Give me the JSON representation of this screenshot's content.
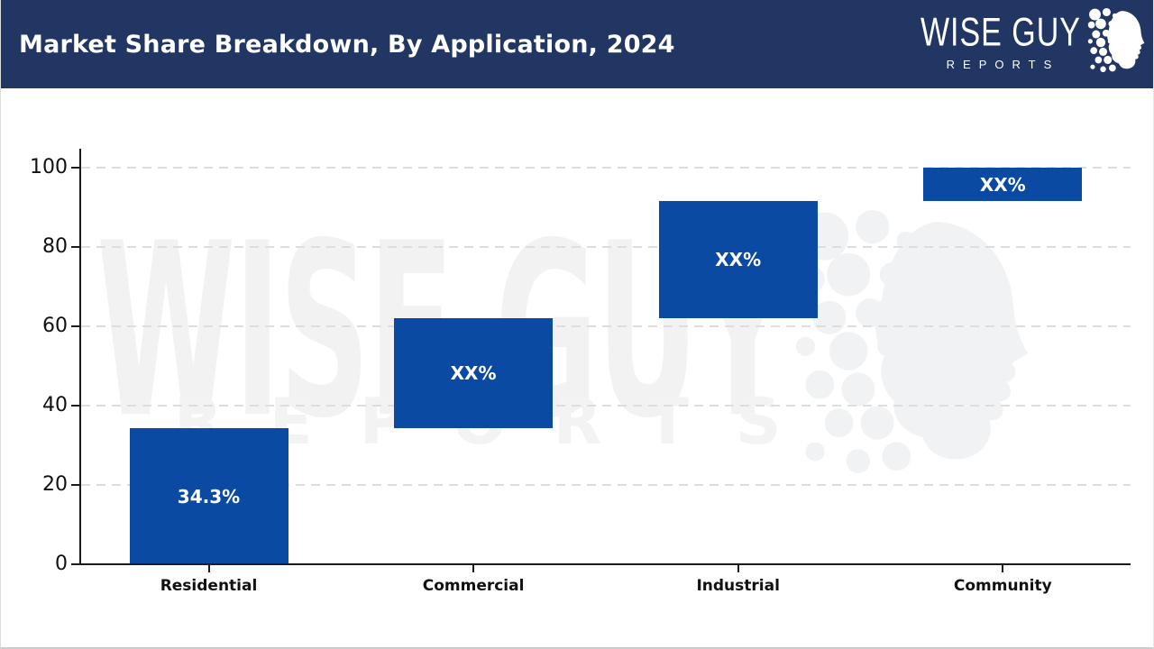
{
  "header": {
    "title": "Market Share Breakdown, By Application, 2024",
    "logo": {
      "line1": "WISE GUY",
      "line2": "REPORTS"
    }
  },
  "watermark": {
    "line1": "WISE GUY",
    "line2": "REPORTS"
  },
  "colors": {
    "header_bg": "#213662",
    "bar_blue": "#0B4AA2",
    "grid_gray": "#dedede",
    "axis_black": "#1a1a1a",
    "watermark_gray": "#f2f2f3"
  },
  "chart_data": {
    "type": "bar",
    "subtype": "waterfall",
    "title": "Market Share Breakdown, By Application, 2024",
    "categories": [
      "Residential",
      "Commercial",
      "Industrial",
      "Community"
    ],
    "segments": [
      {
        "category": "Residential",
        "start": 0,
        "end": 34.3,
        "label": "34.3%"
      },
      {
        "category": "Commercial",
        "start": 34.3,
        "end": 62.0,
        "label": "XX%"
      },
      {
        "category": "Industrial",
        "start": 62.0,
        "end": 91.5,
        "label": "XX%"
      },
      {
        "category": "Community",
        "start": 91.5,
        "end": 100.0,
        "label": "XX%"
      }
    ],
    "bar_color": "#0B4AA2",
    "label_color": "#ffffff",
    "xlabel": "",
    "ylabel": "",
    "yticks": [
      0,
      20,
      40,
      60,
      80,
      100
    ],
    "ylim": [
      0,
      104
    ],
    "grid": "horizontal-dashed",
    "legend": "none"
  }
}
